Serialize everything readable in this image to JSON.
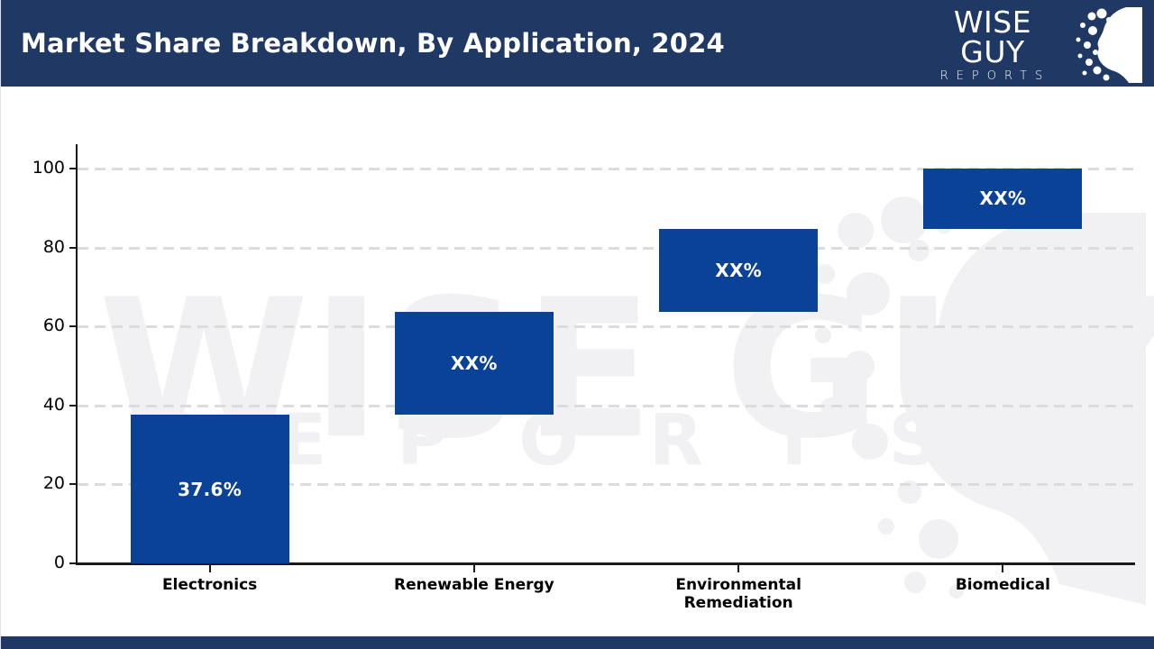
{
  "header": {
    "title": "Market Share Breakdown, By Application, 2024",
    "bg_color": "#1f3864",
    "logo": {
      "line1": "WISE GUY",
      "line2": "REPORTS"
    }
  },
  "watermark": {
    "line1": "WISE GUY",
    "line2": "REPORTS"
  },
  "footer": {
    "bg_color": "#1f3864"
  },
  "chart_data": {
    "type": "bar",
    "subtype": "waterfall",
    "title": "Market Share Breakdown, By Application, 2024",
    "categories": [
      "Electronics",
      "Renewable Energy",
      "Environmental Remediation",
      "Biomedical"
    ],
    "values": [
      37.6,
      26.0,
      21.2,
      15.2
    ],
    "bars": [
      {
        "category": "Electronics",
        "start": 0,
        "end": 37.6,
        "label": "37.6%"
      },
      {
        "category": "Renewable Energy",
        "start": 37.6,
        "end": 63.6,
        "label": "XX%"
      },
      {
        "category": "Environmental Remediation",
        "start": 63.6,
        "end": 84.8,
        "label": "XX%"
      },
      {
        "category": "Biomedical",
        "start": 84.8,
        "end": 100,
        "label": "XX%"
      }
    ],
    "xlabel": "",
    "ylabel": "",
    "ylim": [
      0,
      100
    ],
    "yticks": [
      0,
      20,
      40,
      60,
      80,
      100
    ],
    "grid": "horizontal-dashed",
    "legend": "none",
    "bar_color": "#0a4298",
    "grid_color": "#dcdcdc"
  }
}
